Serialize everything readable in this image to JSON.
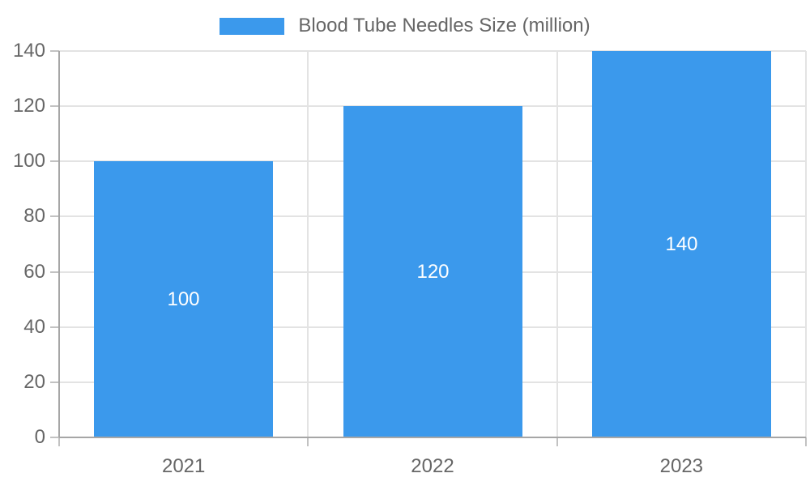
{
  "legend": {
    "position": "top",
    "swatch_icon": "legend-color-box"
  },
  "colors": {
    "bar": "#3B99EC",
    "axis_text": "#666666",
    "grid": "#E3E3E3",
    "tick": "#C2C2C2",
    "axis_line": "#A6A6A6",
    "data_label": "#FFFFFF",
    "background": "#FFFFFF"
  },
  "chart_data": {
    "type": "bar",
    "categories": [
      "2021",
      "2022",
      "2023"
    ],
    "series": [
      {
        "name": "Blood Tube Needles Size (million)",
        "values": [
          100,
          120,
          140
        ],
        "data_labels": [
          "100",
          "120",
          "140"
        ]
      }
    ],
    "xlabel": "",
    "ylabel": "",
    "ylim": [
      0,
      140
    ],
    "yticks": [
      0,
      20,
      40,
      60,
      80,
      100,
      120,
      140
    ],
    "ytick_labels": [
      "0",
      "20",
      "40",
      "60",
      "80",
      "100",
      "120",
      "140"
    ],
    "grid": true,
    "show_data_labels": true,
    "legend_position": "top"
  }
}
